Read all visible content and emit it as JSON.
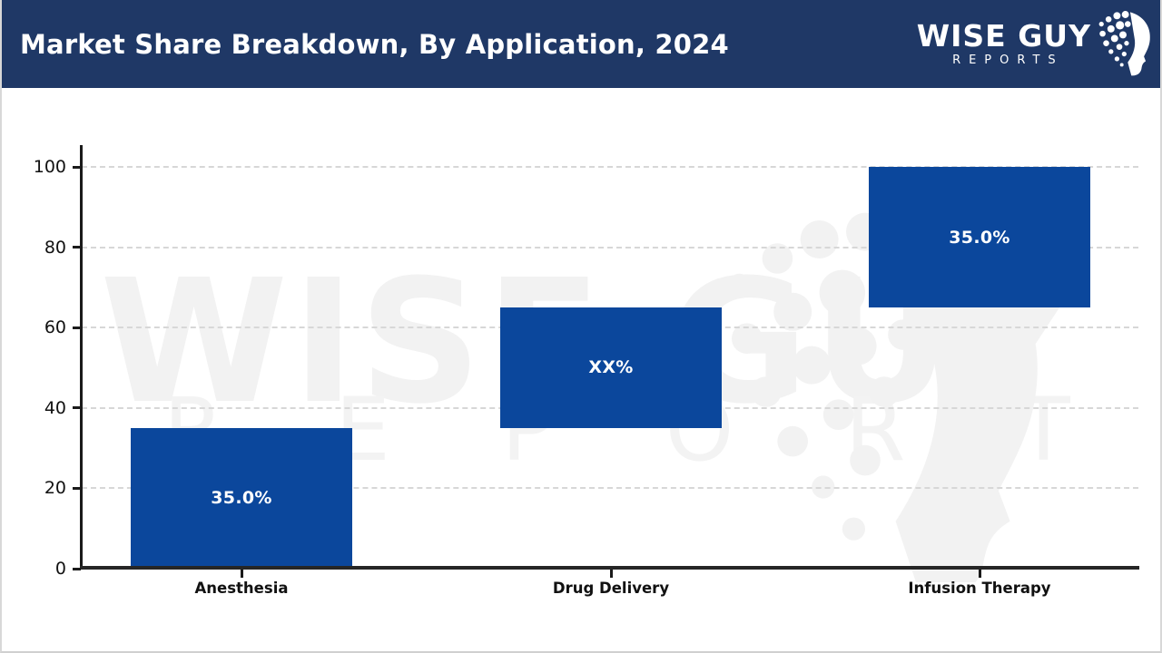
{
  "header": {
    "title": "Market Share Breakdown, By Application, 2024",
    "background_color": "#1f3866",
    "logo": {
      "line1": "WISE GUY",
      "line2": "REPORTS"
    }
  },
  "watermark": {
    "line1": "WISE GUY",
    "line2": "R E P O R T S"
  },
  "chart_data": {
    "type": "bar",
    "subtype": "floating-segment (waterfall-style market share)",
    "title": "Market Share Breakdown, By Application, 2024",
    "categories": [
      "Anesthesia",
      "Drug Delivery",
      "Infusion Therapy"
    ],
    "bars": [
      {
        "category": "Anesthesia",
        "from": 0,
        "to": 35,
        "label": "35.0%"
      },
      {
        "category": "Drug Delivery",
        "from": 35,
        "to": 65,
        "label": "XX%"
      },
      {
        "category": "Infusion Therapy",
        "from": 65,
        "to": 100,
        "label": "35.0%"
      }
    ],
    "yticks": [
      0,
      20,
      40,
      60,
      80,
      100
    ],
    "ylim": [
      0,
      105
    ],
    "xlabel": "",
    "ylabel": "",
    "grid": "horizontal dashed",
    "legend": "none",
    "bar_color": "#0b479c",
    "bar_label_color": "#ffffff"
  }
}
